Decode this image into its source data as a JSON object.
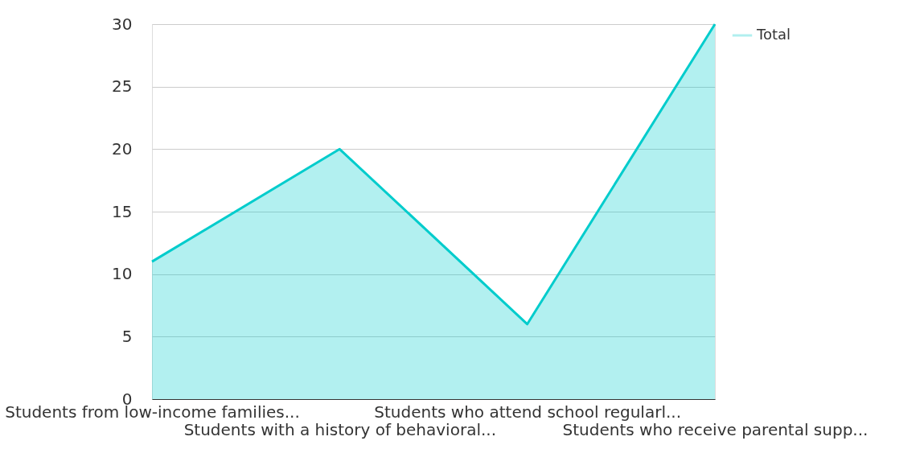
{
  "chart_data": {
    "type": "area",
    "categories": [
      "Students from low-income families...",
      "Students with a history of behavioral...",
      "Students who attend school regularl...",
      "Students who receive parental supp..."
    ],
    "series": [
      {
        "name": "Total",
        "color": "#00cccc",
        "values": [
          11,
          20,
          6,
          30
        ]
      }
    ],
    "ylim": [
      0,
      30
    ],
    "yticks": [
      0,
      5,
      10,
      15,
      20,
      25,
      30
    ],
    "grid": "y",
    "legend": "top right"
  }
}
